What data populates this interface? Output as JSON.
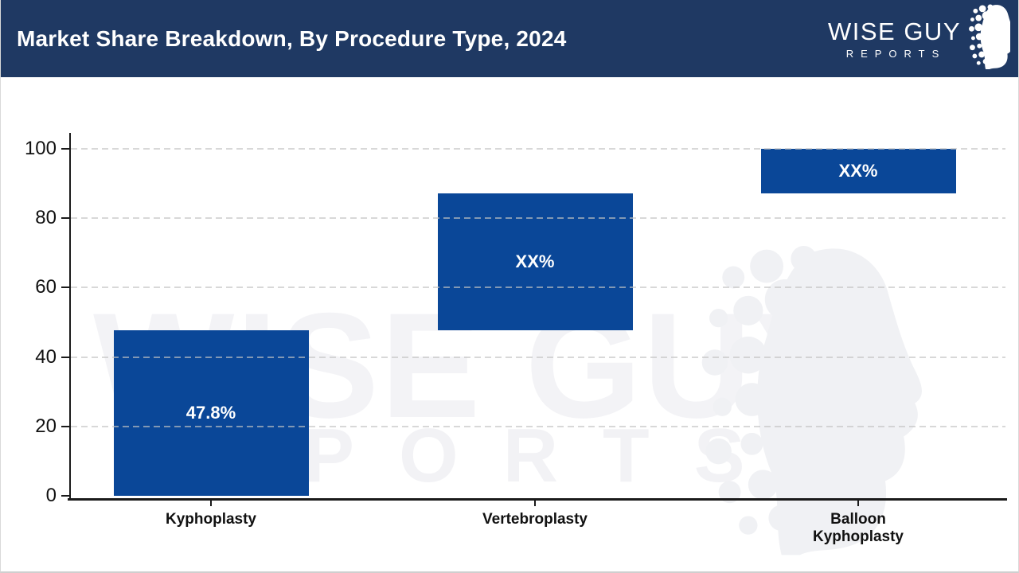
{
  "header": {
    "title": "Market Share Breakdown, By Procedure Type, 2024",
    "logo": {
      "name": "WISE GUY",
      "sub": "REPORTS"
    }
  },
  "watermark": {
    "big": "WISE GUY",
    "small": "PORTS"
  },
  "chart_data": {
    "type": "bar",
    "subtype": "waterfall-breakdown",
    "title": "Market Share Breakdown, By Procedure Type, 2024",
    "categories": [
      "Kyphoplasty",
      "Vertebroplasty",
      "Balloon Kyphoplasty"
    ],
    "bars": [
      {
        "category": "Kyphoplasty",
        "label": "47.8%",
        "start": 0,
        "end": 47.8
      },
      {
        "category": "Vertebroplasty",
        "label": "XX%",
        "start": 47.8,
        "end": 87.2
      },
      {
        "category": "Balloon Kyphoplasty",
        "label": "XX%",
        "start": 87.2,
        "end": 100
      }
    ],
    "ylim": [
      0,
      100
    ],
    "yticks": [
      0,
      20,
      40,
      60,
      80,
      100
    ],
    "grid": "dashed horizontal gridlines at y ticks, drawn over bars",
    "legend": "none",
    "bar_color": "#0A4798",
    "bar_label_color": "#ffffff"
  },
  "colors": {
    "header_bg": "#1F3963",
    "bar": "#0A4798",
    "axis": "#1a1a1a",
    "grid": "#c3c3c3",
    "watermark": "#f0f1f4",
    "title_text": "#ffffff",
    "tick_text": "#111111"
  }
}
